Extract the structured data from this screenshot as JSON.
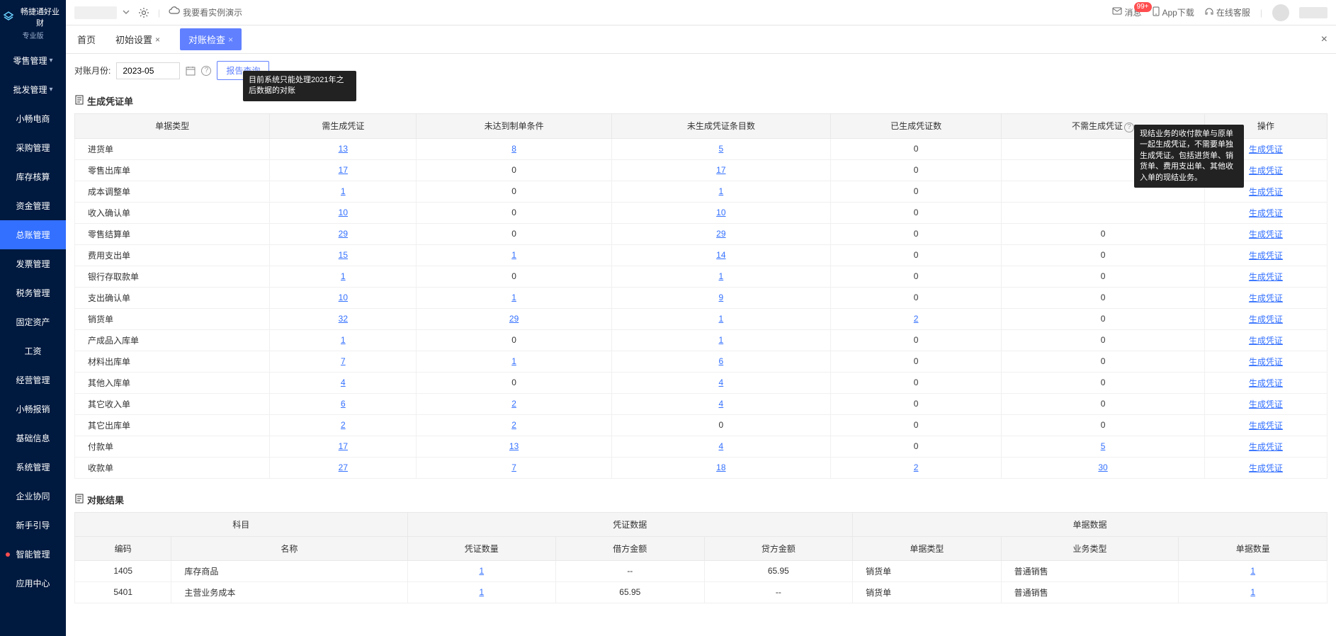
{
  "logo": {
    "title": "畅捷通好业财",
    "subtitle": "专业版"
  },
  "sidebar": {
    "items": [
      {
        "label": "零售管理",
        "caret": true
      },
      {
        "label": "批发管理",
        "caret": true
      },
      {
        "label": "小畅电商"
      },
      {
        "label": "采购管理"
      },
      {
        "label": "库存核算"
      },
      {
        "label": "资金管理"
      },
      {
        "label": "总账管理",
        "active": true
      },
      {
        "label": "发票管理"
      },
      {
        "label": "税务管理"
      },
      {
        "label": "固定资产"
      },
      {
        "label": "工资"
      },
      {
        "label": "经营管理"
      },
      {
        "label": "小畅报销"
      },
      {
        "label": "基础信息"
      },
      {
        "label": "系统管理"
      },
      {
        "label": "企业协同"
      },
      {
        "label": "新手引导"
      },
      {
        "label": "智能管理",
        "dot": true
      },
      {
        "label": "应用中心"
      }
    ]
  },
  "topbar": {
    "demo": "我要看实例演示",
    "right": {
      "msg": "消息",
      "msg_badge": "99+",
      "app": "App下载",
      "svc": "在线客服"
    }
  },
  "tabs": {
    "items": [
      {
        "label": "首页"
      },
      {
        "label": "初始设置",
        "closable": true
      },
      {
        "label": "对账检查",
        "closable": true,
        "active": true
      }
    ]
  },
  "filter": {
    "month_label": "对账月份:",
    "month_value": "2023-05",
    "report_btn": "报告查询"
  },
  "tooltip1": "目前系统只能处理2021年之后数据的对账",
  "tooltip2": "现结业务的收付款单与原单一起生成凭证，不需要单独生成凭证。包括进货单、销货单、费用支出单、其他收入单的现结业务。",
  "section1": {
    "title": "生成凭证单",
    "headers": [
      "单据类型",
      "需生成凭证",
      "未达到制单条件",
      "未生成凭证条目数",
      "已生成凭证数",
      "不需生成凭证",
      "操作"
    ],
    "action": "生成凭证",
    "help_col": 5,
    "rows": [
      {
        "c0": "进货单",
        "c1": "13",
        "l1": true,
        "c2": "8",
        "l2": true,
        "c3": "5",
        "l3": true,
        "c4": "0",
        "c5": ""
      },
      {
        "c0": "零售出库单",
        "c1": "17",
        "l1": true,
        "c2": "0",
        "c3": "17",
        "l3": true,
        "c4": "0",
        "c5": ""
      },
      {
        "c0": "成本调整单",
        "c1": "1",
        "l1": true,
        "c2": "0",
        "c3": "1",
        "l3": true,
        "c4": "0",
        "c5": ""
      },
      {
        "c0": "收入确认单",
        "c1": "10",
        "l1": true,
        "c2": "0",
        "c3": "10",
        "l3": true,
        "c4": "0",
        "c5": ""
      },
      {
        "c0": "零售结算单",
        "c1": "29",
        "l1": true,
        "c2": "0",
        "c3": "29",
        "l3": true,
        "c4": "0",
        "c5": "0"
      },
      {
        "c0": "费用支出单",
        "c1": "15",
        "l1": true,
        "c2": "1",
        "l2": true,
        "c3": "14",
        "l3": true,
        "c4": "0",
        "c5": "0"
      },
      {
        "c0": "银行存取款单",
        "c1": "1",
        "l1": true,
        "c2": "0",
        "c3": "1",
        "l3": true,
        "c4": "0",
        "c5": "0"
      },
      {
        "c0": "支出确认单",
        "c1": "10",
        "l1": true,
        "c2": "1",
        "l2": true,
        "c3": "9",
        "l3": true,
        "c4": "0",
        "c5": "0"
      },
      {
        "c0": "销货单",
        "c1": "32",
        "l1": true,
        "c2": "29",
        "l2": true,
        "c3": "1",
        "l3": true,
        "c4": "2",
        "l4": true,
        "c5": "0"
      },
      {
        "c0": "产成品入库单",
        "c1": "1",
        "l1": true,
        "c2": "0",
        "c3": "1",
        "l3": true,
        "c4": "0",
        "c5": "0"
      },
      {
        "c0": "材料出库单",
        "c1": "7",
        "l1": true,
        "c2": "1",
        "l2": true,
        "c3": "6",
        "l3": true,
        "c4": "0",
        "c5": "0"
      },
      {
        "c0": "其他入库单",
        "c1": "4",
        "l1": true,
        "c2": "0",
        "c3": "4",
        "l3": true,
        "c4": "0",
        "c5": "0"
      },
      {
        "c0": "其它收入单",
        "c1": "6",
        "l1": true,
        "c2": "2",
        "l2": true,
        "c3": "4",
        "l3": true,
        "c4": "0",
        "c5": "0"
      },
      {
        "c0": "其它出库单",
        "c1": "2",
        "l1": true,
        "c2": "2",
        "l2": true,
        "c3": "0",
        "c4": "0",
        "c5": "0"
      },
      {
        "c0": "付款单",
        "c1": "17",
        "l1": true,
        "c2": "13",
        "l2": true,
        "c3": "4",
        "l3": true,
        "c4": "0",
        "c5": "5",
        "l5": true
      },
      {
        "c0": "收款单",
        "c1": "27",
        "l1": true,
        "c2": "7",
        "l2": true,
        "c3": "18",
        "l3": true,
        "c4": "2",
        "l4": true,
        "c5": "30",
        "l5": true
      }
    ]
  },
  "section2": {
    "title": "对账结果",
    "group_headers": [
      "科目",
      "凭证数据",
      "单据数据"
    ],
    "headers": [
      "编码",
      "名称",
      "凭证数量",
      "借方金额",
      "贷方金额",
      "单据类型",
      "业务类型",
      "单据数量"
    ],
    "rows": [
      {
        "code": "1405",
        "name": "库存商品",
        "vcount": "1",
        "debit": "--",
        "credit": "65.95",
        "btype": "销货单",
        "biztype": "普通销售",
        "bcount": "1"
      },
      {
        "code": "5401",
        "name": "主营业务成本",
        "vcount": "1",
        "debit": "65.95",
        "credit": "--",
        "btype": "销货单",
        "biztype": "普通销售",
        "bcount": "1"
      }
    ]
  },
  "colors": {
    "sidebar_bg": "#00193f",
    "active_bg": "#3370ff",
    "tab_active_bg": "#6080ff",
    "link": "#3370ff",
    "badge": "#ff4d4f"
  }
}
